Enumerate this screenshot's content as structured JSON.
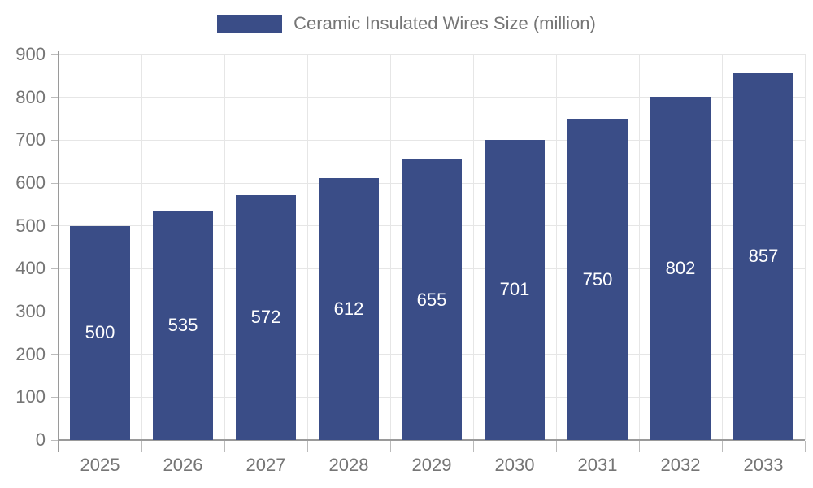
{
  "chart_data": {
    "type": "bar",
    "title": "",
    "legend_label": "Ceramic Insulated Wires Size (million)",
    "legend_position": "top-center",
    "categories": [
      "2025",
      "2026",
      "2027",
      "2028",
      "2029",
      "2030",
      "2031",
      "2032",
      "2033"
    ],
    "values": [
      500,
      535,
      572,
      612,
      655,
      701,
      750,
      802,
      857
    ],
    "series": [
      {
        "name": "Ceramic Insulated Wires Size (million)",
        "values": [
          500,
          535,
          572,
          612,
          655,
          701,
          750,
          802,
          857
        ]
      }
    ],
    "xlabel": "",
    "ylabel": "",
    "ylim": [
      0,
      900
    ],
    "yticks": [
      0,
      100,
      200,
      300,
      400,
      500,
      600,
      700,
      800,
      900
    ],
    "grid": true,
    "bar_value_labels_inside": true,
    "colors": {
      "bar": "#3a4d87",
      "bar_label": "#ffffff",
      "tick_label": "#757575",
      "axis_line": "#9a9a9a",
      "tick_mark": "#bbbbbb",
      "gridline": "#e6e6e6",
      "background": "#ffffff"
    }
  }
}
